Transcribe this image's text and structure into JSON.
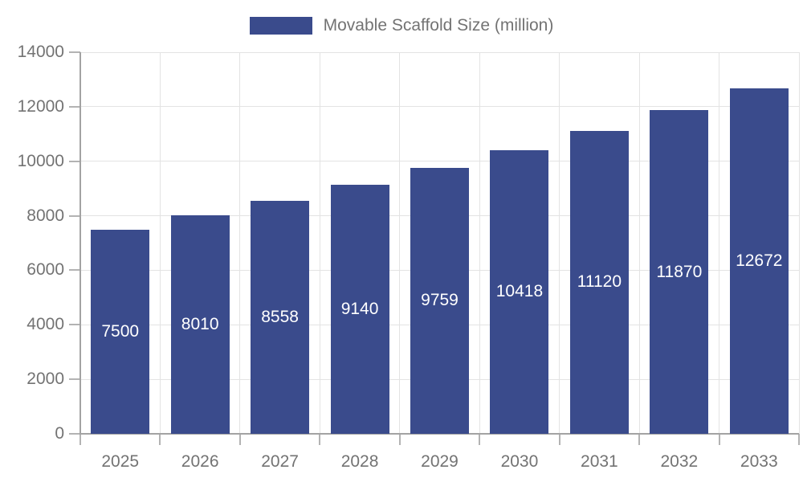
{
  "chart_data": {
    "type": "bar",
    "title": "Movable Scaffold Size (million)",
    "categories": [
      "2025",
      "2026",
      "2027",
      "2028",
      "2029",
      "2030",
      "2031",
      "2032",
      "2033"
    ],
    "series": [
      {
        "name": "Movable Scaffold Size (million)",
        "values": [
          7500,
          8010,
          8558,
          9140,
          9759,
          10418,
          11120,
          11870,
          12672
        ]
      }
    ],
    "value_labels": [
      "7500",
      "8010",
      "8558",
      "9140",
      "9759",
      "10418",
      "11120",
      "11870",
      "12672"
    ],
    "xlabel": "",
    "ylabel": "",
    "ylim": [
      0,
      14000
    ],
    "yticks": [
      0,
      2000,
      4000,
      6000,
      8000,
      10000,
      12000,
      14000
    ],
    "grid": true,
    "legend_position": "top-center",
    "bar_color": "#3A4B8C",
    "bar_label_color": "#FFFFFF",
    "axis_text_color": "#737373",
    "grid_color": "#E3E3E3",
    "axis_line_color": "#A3A3A3",
    "tick_color": "#B3B3B3"
  }
}
